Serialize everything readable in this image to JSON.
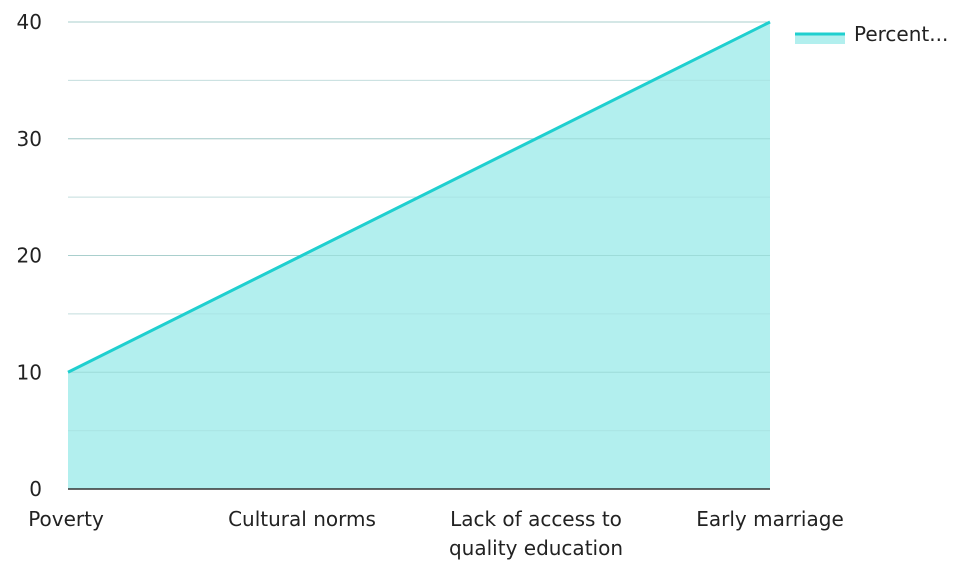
{
  "chart_data": {
    "type": "area",
    "categories": [
      "Poverty",
      "Cultural norms",
      "Lack of access to quality education",
      "Early marriage"
    ],
    "category_lines": [
      [
        "Poverty"
      ],
      [
        "Cultural norms"
      ],
      [
        "Lack of access to",
        "quality education"
      ],
      [
        "Early marriage"
      ]
    ],
    "series": [
      {
        "name": "Percent...",
        "values": [
          10,
          20,
          30,
          40
        ]
      }
    ],
    "ylim": [
      0,
      40
    ],
    "yticks": [
      0,
      10,
      20,
      30,
      40
    ],
    "grid": true,
    "legend": "top-right",
    "colors": {
      "line": "#1fcfcf",
      "fill": "#b2efee",
      "grid_major": "#cfcfcf",
      "grid_minor": "#e6e6e6",
      "axis": "#333333"
    }
  }
}
